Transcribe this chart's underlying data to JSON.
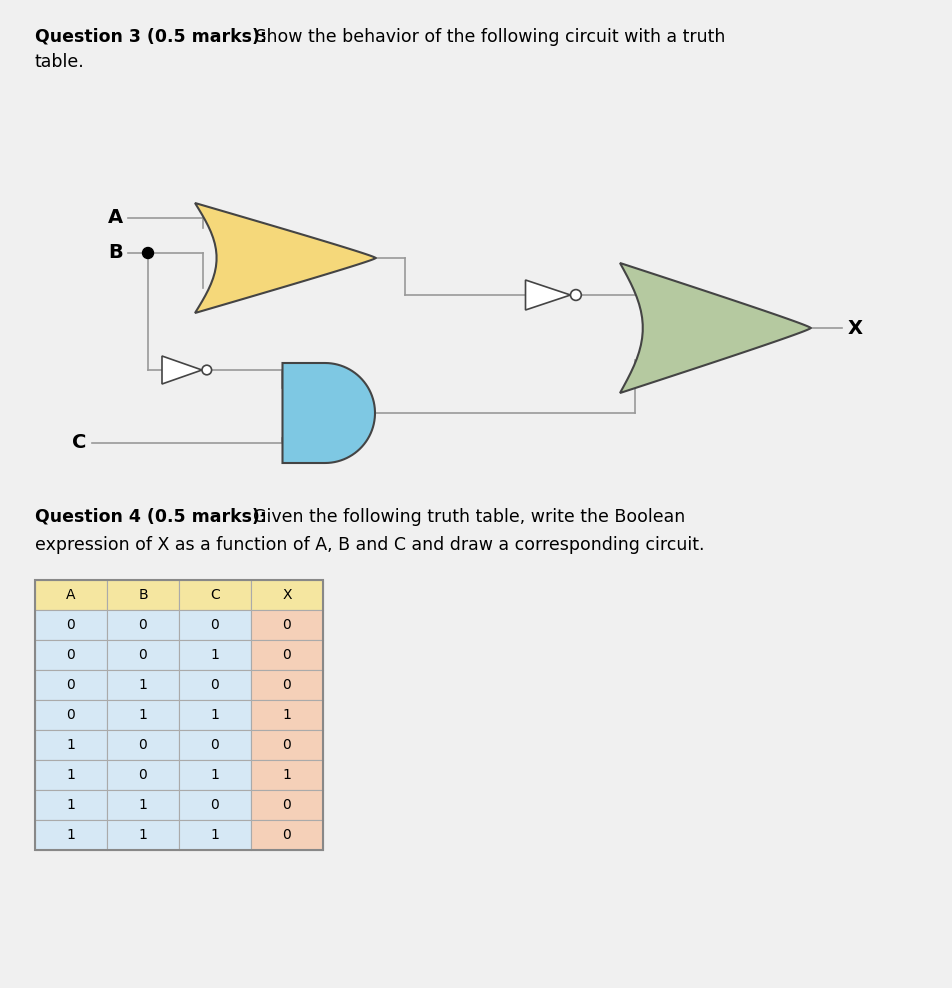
{
  "q3_bold": "Question 3 (0.5 marks):",
  "q3_normal": " Show the behavior of the following circuit with a truth",
  "q3_line2": "table.",
  "q4_bold": "Question 4 (0.5 marks):",
  "q4_normal": "  Given the following truth table, write the Boolean",
  "q4_line2": "expression of X as a function of A, B and C and draw a corresponding circuit.",
  "background_color": "#f0f0f0",
  "or_gate_color": "#f5d87a",
  "and_gate_color": "#7ec8e3",
  "or_gate2_color": "#b5c9a0",
  "wire_color": "#999999",
  "gate_edge_color": "#444444",
  "table_header_color": "#f5e6a0",
  "table_abc_color": "#d6e8f5",
  "table_x_color": "#f5d0b8",
  "table_data": {
    "headers": [
      "A",
      "B",
      "C",
      "X"
    ],
    "rows": [
      [
        0,
        0,
        0,
        0
      ],
      [
        0,
        0,
        1,
        0
      ],
      [
        0,
        1,
        0,
        0
      ],
      [
        0,
        1,
        1,
        1
      ],
      [
        1,
        0,
        0,
        0
      ],
      [
        1,
        0,
        1,
        1
      ],
      [
        1,
        1,
        0,
        0
      ],
      [
        1,
        1,
        1,
        0
      ]
    ]
  }
}
